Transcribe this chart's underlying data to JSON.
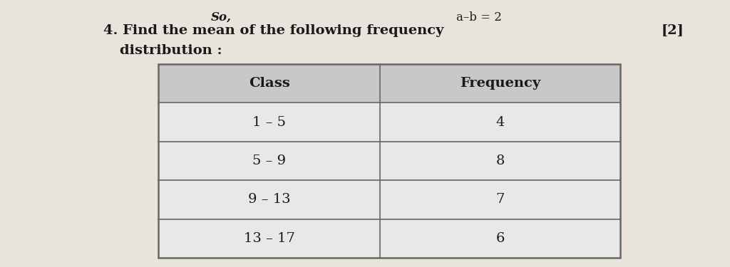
{
  "title_line1": "4. Find the mean of the following frequency",
  "title_line2": "distribution :",
  "title_mark": "[2]",
  "top_text": "So,",
  "top_right_text": "a–b = 2",
  "headers": [
    "Class",
    "Frequency"
  ],
  "rows": [
    [
      "1 – 5",
      "4"
    ],
    [
      "5 – 9",
      "8"
    ],
    [
      "9 – 13",
      "7"
    ],
    [
      "13 – 17",
      "6"
    ]
  ],
  "header_bg": "#c8c8c8",
  "row_bg": "#e8e8e8",
  "table_border": "#666666",
  "page_bg": "#e8e4dc",
  "text_color": "#1a1a1a",
  "font_size_title": 14,
  "font_size_table": 14,
  "font_size_top": 12
}
